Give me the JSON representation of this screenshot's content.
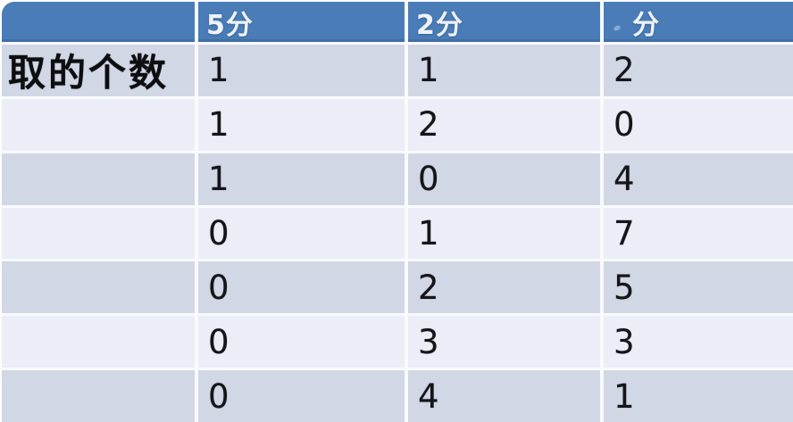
{
  "chart_data": {
    "type": "table",
    "title": "",
    "columns": [
      "",
      "5分",
      "2分",
      "分"
    ],
    "row_header_label": "取的个数",
    "rows": [
      [
        "取的个数",
        "1",
        "1",
        "2"
      ],
      [
        "",
        "1",
        "2",
        "0"
      ],
      [
        "",
        "1",
        "0",
        "4"
      ],
      [
        "",
        "0",
        "1",
        "7"
      ],
      [
        "",
        "0",
        "2",
        "5"
      ],
      [
        "",
        "0",
        "3",
        "3"
      ],
      [
        "",
        "0",
        "4",
        "1"
      ]
    ],
    "layout": {
      "header_row": true,
      "alternating_rows": true,
      "gridlines": "white"
    }
  },
  "colors": {
    "header_bg": "#4a7db8",
    "header_text": "#eef3f9",
    "row_dark": "#d2d7e5",
    "row_light": "#ebeef6",
    "grid_line": "#f8fafc",
    "cell_text": "#141519"
  }
}
